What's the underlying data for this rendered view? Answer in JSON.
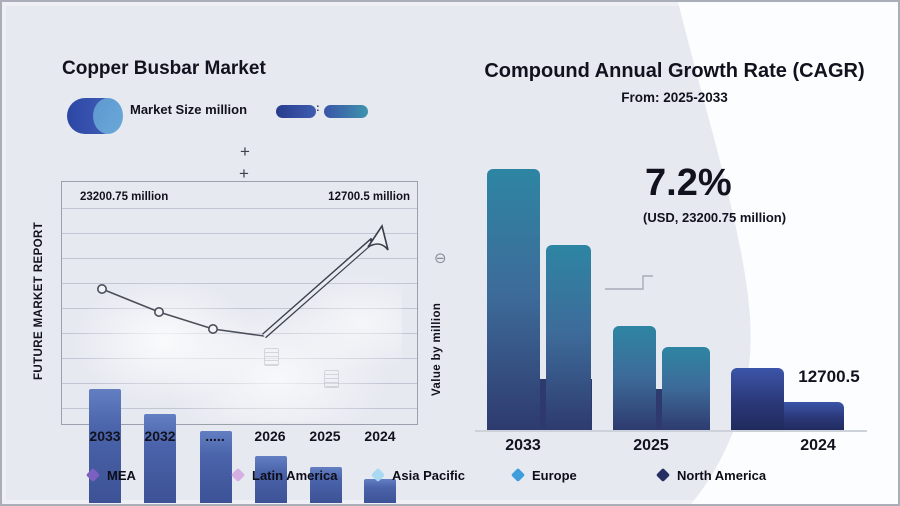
{
  "header": {
    "left_title": "Copper Busbar Market",
    "market_size_label": "Market Size million",
    "ratio_separator": ":",
    "right_title": "Compound Annual Growth Rate (CAGR)",
    "right_subtitle": "From: 2025-2033"
  },
  "icons": {
    "plus": "+",
    "minus_circle": "⊖"
  },
  "left_chart": {
    "top_left_value": "23200.75 million",
    "top_right_value": "12700.5 million",
    "side_label": "FUTURE MARKET REPORT",
    "value_axis_label": "Value by million",
    "x_labels": [
      "2033",
      "2032",
      ".....",
      "2026",
      "2025",
      "2024"
    ]
  },
  "right_chart": {
    "cagr_value": "7.2%",
    "cagr_note": "(USD, 23200.75 million)",
    "value_callout": "12700.5",
    "x_labels": [
      "2033",
      "2025",
      "2024"
    ]
  },
  "legend": {
    "items": [
      {
        "label": "MEA",
        "color": "#7b5fc1"
      },
      {
        "label": "Latin America",
        "color": "#d5aee2"
      },
      {
        "label": "Asia Pacific",
        "color": "#a9d8f2"
      },
      {
        "label": "Europe",
        "color": "#3f9ddb"
      },
      {
        "label": "North America",
        "color": "#272f62"
      }
    ]
  },
  "chart_data": [
    {
      "type": "bar",
      "title": "Copper Busbar Market — Market Size million",
      "categories": [
        "2033",
        "2032",
        ".....",
        "2026",
        "2025",
        "2024"
      ],
      "values": [
        100,
        78,
        63,
        41,
        32,
        21
      ],
      "units": "relative bar height, max bar = 100 (chart has no numeric axis)",
      "labeled_values": {
        "2033": "23200.75 million",
        "2024": "12700.5 million"
      },
      "ylabel": "Value by million",
      "side_watermark": "FUTURE MARKET REPORT",
      "grid": true,
      "annotations": [
        "descending trend line with markers over 2033-2026",
        "growth arrow rising to upper right"
      ]
    },
    {
      "type": "bar",
      "title": "Compound Annual Growth Rate (CAGR) From: 2025-2033",
      "categories": [
        "2033",
        "2025",
        "2024"
      ],
      "series": [
        {
          "name": "primary",
          "values": [
            100,
            40,
            24
          ]
        },
        {
          "name": "secondary",
          "values": [
            71,
            32,
            11
          ]
        }
      ],
      "units": "relative bar height, max bar = 100 (chart has no numeric axis)",
      "labeled_values": {
        "2024": "12700.5"
      },
      "cagr": "7.2%",
      "cagr_basis": "(USD, 23200.75 million)",
      "grid": false,
      "legend_position": "bottom",
      "legend_entries": [
        "MEA",
        "Latin America",
        "Asia Pacific",
        "Europe",
        "North America"
      ]
    }
  ]
}
